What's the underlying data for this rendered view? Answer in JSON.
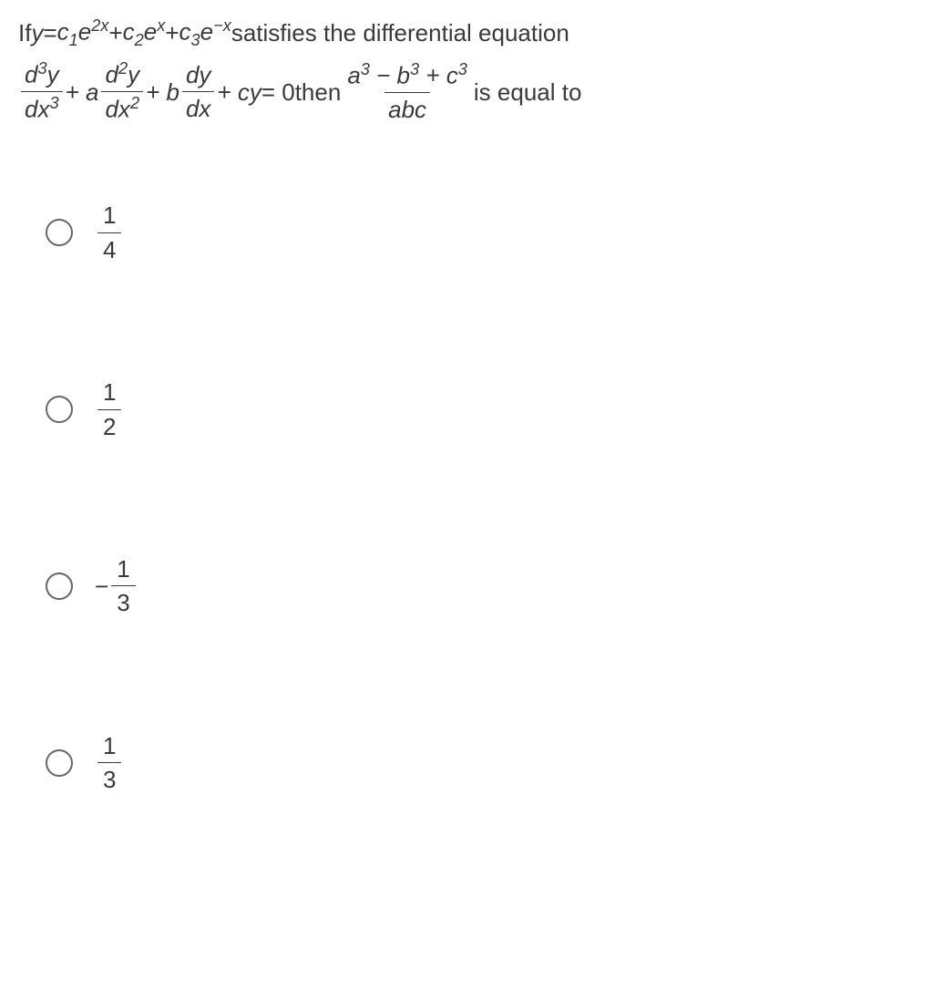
{
  "question": {
    "intro": "If ",
    "y_eq": "y",
    "equals": " = ",
    "c1": "c",
    "sub1": "1",
    "e1": "e",
    "exp1": "2x",
    "plus": " + ",
    "c2": "c",
    "sub2": "2",
    "e2": "e",
    "exp2": "x",
    "c3": "c",
    "sub3": "3",
    "e3": "e",
    "exp3": "−x",
    "satisfies": " satisfies the differential equation",
    "d3y": "d",
    "d3y_exp": "3",
    "d3y_y": "y",
    "dx3": "dx",
    "dx3_exp": "3",
    "plus_a": " + a",
    "d2y": "d",
    "d2y_exp": "2",
    "d2y_y": "y",
    "dx2": "dx",
    "dx2_exp": "2",
    "plus_b": " + b",
    "dy": "dy",
    "dx": "dx",
    "plus_cy": " + cy",
    "eq0": " = 0 ",
    "then": " then ",
    "a3": "a",
    "a3e": "3",
    "minus": " − ",
    "b3": "b",
    "b3e": "3",
    "plus2": " + ",
    "c3v": "c",
    "c3e": "3",
    "abc": "abc",
    "isequal": " is equal to"
  },
  "options": {
    "a": {
      "num": "1",
      "den": "4",
      "neg": ""
    },
    "b": {
      "num": "1",
      "den": "2",
      "neg": ""
    },
    "c": {
      "num": "1",
      "den": "3",
      "neg": "−"
    },
    "d": {
      "num": "1",
      "den": "3",
      "neg": ""
    }
  }
}
